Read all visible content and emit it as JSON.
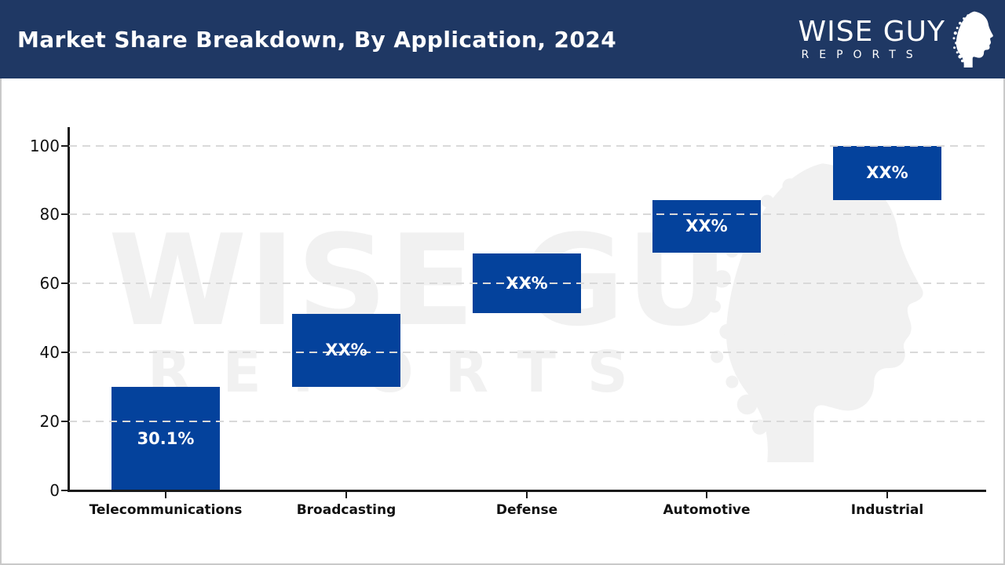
{
  "header": {
    "title": "Market Share Breakdown, By Application, 2024",
    "logo": {
      "line1": "WISE GUY",
      "line2": "REPORTS"
    }
  },
  "watermark": {
    "line1": "WISE GUY",
    "line2": "REPORTS"
  },
  "chart_data": {
    "type": "bar",
    "variant": "floating-segment-waterfall",
    "title": "Market Share Breakdown, By Application, 2024",
    "categories": [
      "Telecommunications",
      "Broadcasting",
      "Defense",
      "Automotive",
      "Industrial"
    ],
    "segments": [
      {
        "category": "Telecommunications",
        "start": 0,
        "end": 30.1,
        "label": "30.1%"
      },
      {
        "category": "Broadcasting",
        "start": 30.0,
        "end": 51.3,
        "label": "XX%"
      },
      {
        "category": "Defense",
        "start": 51.5,
        "end": 68.8,
        "label": "XX%"
      },
      {
        "category": "Automotive",
        "start": 69.0,
        "end": 84.3,
        "label": "XX%"
      },
      {
        "category": "Industrial",
        "start": 84.3,
        "end": 100.0,
        "label": "XX%"
      }
    ],
    "xlabel": "",
    "ylabel": "",
    "ylim": [
      0,
      100
    ],
    "yticks": [
      0,
      20,
      40,
      60,
      80,
      100
    ],
    "grid": "horizontal-dashed",
    "legend": "none",
    "bar_color": "#04429c",
    "colors": {
      "header_bg": "#1f3864",
      "grid": "#d9d9d9",
      "axis": "#1a1a1a",
      "bar_label_text": "#ffffff",
      "watermark": "#f1f1f1"
    }
  }
}
